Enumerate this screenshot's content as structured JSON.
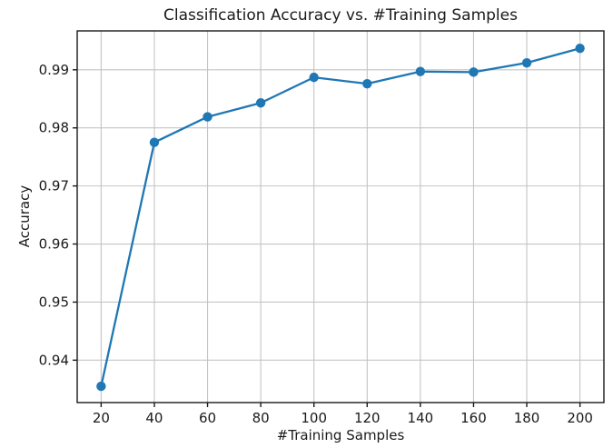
{
  "chart_data": {
    "type": "line",
    "title": "Classification Accuracy vs. #Training Samples",
    "xlabel": "#Training Samples",
    "ylabel": "Accuracy",
    "x": [
      20,
      40,
      60,
      80,
      100,
      120,
      140,
      160,
      180,
      200
    ],
    "y": [
      0.9355,
      0.9775,
      0.9819,
      0.9843,
      0.9887,
      0.9876,
      0.9897,
      0.9896,
      0.9912,
      0.9937
    ],
    "x_ticks": [
      20,
      40,
      60,
      80,
      100,
      120,
      140,
      160,
      180,
      200
    ],
    "y_ticks": [
      0.94,
      0.95,
      0.96,
      0.97,
      0.98,
      0.99
    ],
    "y_tick_decimals": 2,
    "xlim": [
      11,
      209
    ],
    "ylim": [
      0.9327,
      0.9967
    ],
    "grid": true,
    "legend": "none",
    "marker": "circle",
    "line_color": "#1f77b4"
  },
  "colors": {
    "background": "#ffffff",
    "grid": "#c4c4c4",
    "spine": "#1a1a1a",
    "tick": "#1a1a1a",
    "text": "#1a1a1a",
    "line": "#1f77b4"
  }
}
